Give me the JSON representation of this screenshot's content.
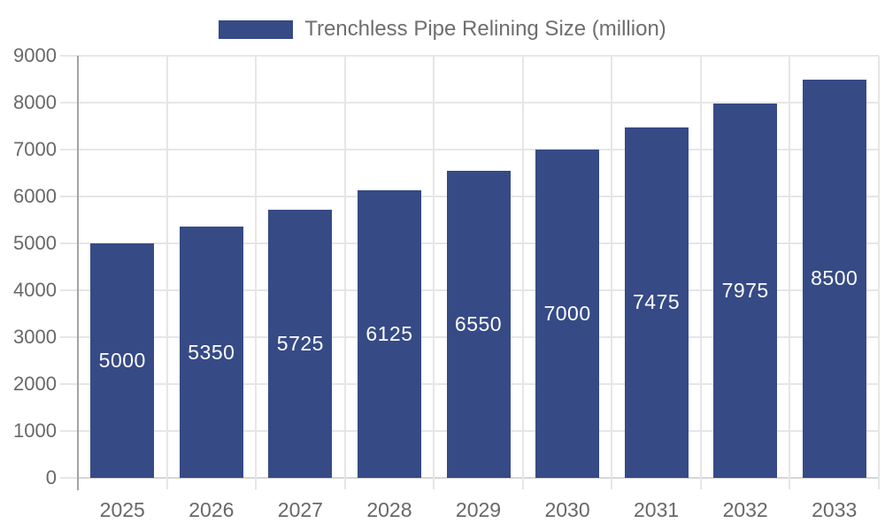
{
  "legend": {
    "label": "Trenchless Pipe Relining Size (million)"
  },
  "chart_data": {
    "type": "bar",
    "title": "",
    "xlabel": "",
    "ylabel": "",
    "series_name": "Trenchless Pipe Relining Size (million)",
    "categories": [
      "2025",
      "2026",
      "2027",
      "2028",
      "2029",
      "2030",
      "2031",
      "2032",
      "2033"
    ],
    "values": [
      5000,
      5350,
      5725,
      6125,
      6550,
      7000,
      7475,
      7975,
      8500
    ],
    "ylim": [
      0,
      9000
    ],
    "ytick_step": 1000,
    "ytick_labels": [
      "0",
      "1000",
      "2000",
      "3000",
      "4000",
      "5000",
      "6000",
      "7000",
      "8000",
      "9000"
    ],
    "grid": true,
    "legend_position": "top-center",
    "value_labels": "inside-middle-white"
  },
  "colors": {
    "bar": "#364a86",
    "grid": "#e6e6e6",
    "axis_line": "#a3a3a3",
    "zero_line": "#d6d6d6",
    "tick_text": "#686868",
    "legend_text": "#6e6e6e",
    "value_label": "#ffffff",
    "background": "#ffffff"
  }
}
